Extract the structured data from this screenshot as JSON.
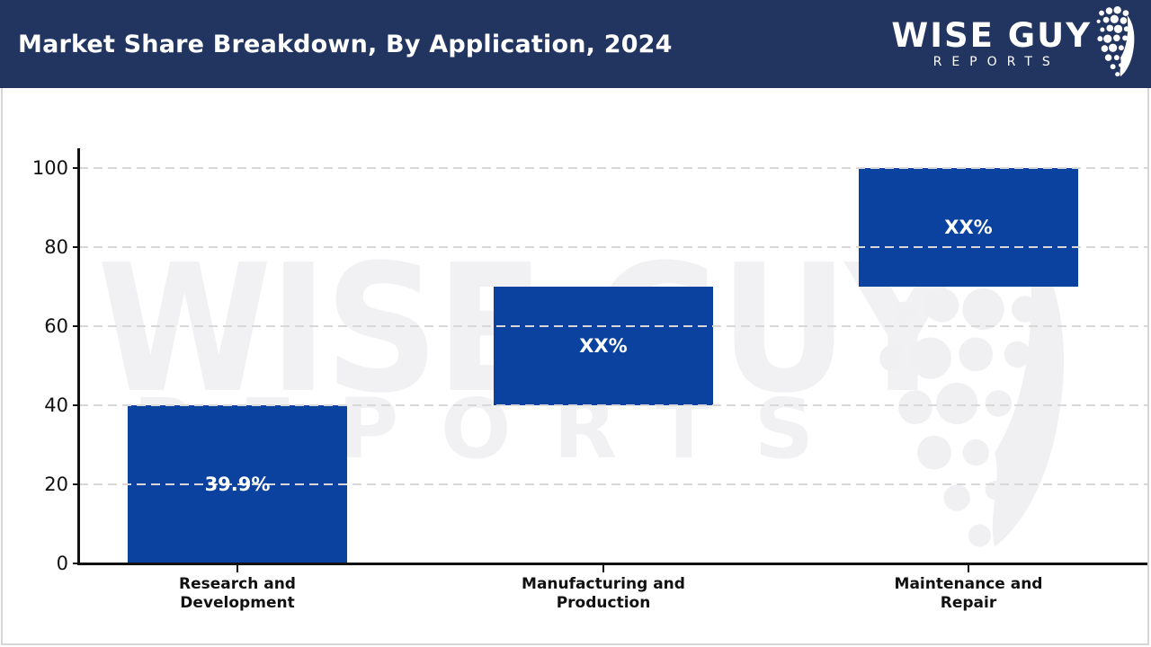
{
  "header": {
    "title": "Market Share Breakdown, By Application, 2024",
    "logo": {
      "line1": "WISE GUY",
      "line2": "REPORTS"
    }
  },
  "watermark": {
    "line1": "WISE GUY",
    "line2": "REPORTS"
  },
  "chart_data": {
    "type": "bar",
    "subtype": "waterfall-floating-bars",
    "title": "Market Share Breakdown, By Application, 2024",
    "categories": [
      "Research and Development",
      "Manufacturing and Production",
      "Maintenance and Repair"
    ],
    "category_lines": [
      [
        "Research and",
        "Development"
      ],
      [
        "Manufacturing and",
        "Production"
      ],
      [
        "Maintenance and",
        "Repair"
      ]
    ],
    "segments": [
      {
        "category": "Research and Development",
        "start": 0,
        "end": 39.9,
        "label": "39.9%"
      },
      {
        "category": "Manufacturing and Production",
        "start": 40,
        "end": 70,
        "label": "XX%"
      },
      {
        "category": "Maintenance and Repair",
        "start": 70,
        "end": 100,
        "label": "XX%"
      }
    ],
    "yticks": [
      0,
      20,
      40,
      60,
      80,
      100
    ],
    "ylim": [
      0,
      105
    ],
    "grid": "dashed-horizontal",
    "legend": "none",
    "bar_color": "#0b42a0",
    "bar_label_color": "#ffffff"
  },
  "colors": {
    "header_bg": "#223560",
    "bar": "#0b42a0",
    "grid": "#d8d8d8",
    "axis": "#111111",
    "frame": "#d6d6d6",
    "watermark": "#f1f1f3"
  }
}
